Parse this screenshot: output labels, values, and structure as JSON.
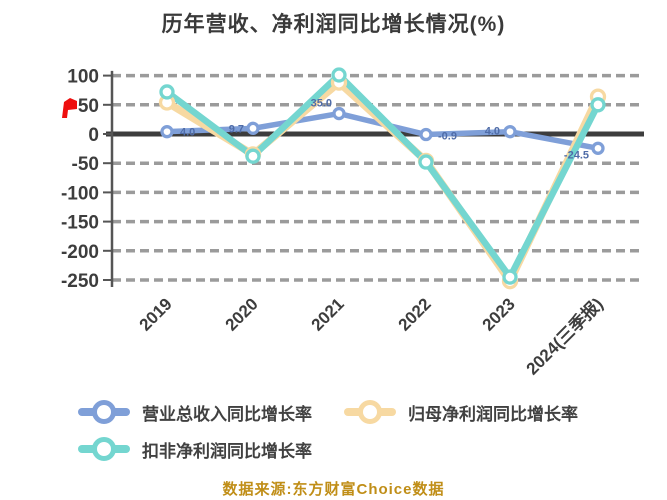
{
  "title": "历年营收、净利润同比增长情况(%)",
  "caption": "数据来源:东方财富Choice数据",
  "colors": {
    "revenue_line": "#7f9fd8",
    "net_profit_line": "#f7d9a2",
    "non_recurring_line": "#74d6d0",
    "zero_line": "#3d3d3d",
    "grid": "#9b9b9b",
    "axis_text": "#3d3d3d",
    "data_label": "#4f6ca8",
    "caption_text": "#c08e17",
    "red_marker": "#ee0f0f"
  },
  "chart_data": {
    "type": "line",
    "title": "历年营收、净利润同比增长情况(%)",
    "categories": [
      "2019",
      "2020",
      "2021",
      "2022",
      "2023",
      "2024(三季报)"
    ],
    "series": [
      {
        "name": "营业总收入同比增长率",
        "color": "#7f9fd8",
        "width": 5.5,
        "marker_r": 5,
        "values": [
          4.0,
          9.7,
          35.0,
          -0.9,
          4.0,
          -24.5
        ],
        "labels": [
          "4.0",
          "9.7",
          "35.0",
          "-0.9",
          "4.0",
          "-24.5"
        ]
      },
      {
        "name": "归母净利润同比增长率",
        "color": "#f7d9a2",
        "width": 7.5,
        "marker_r": 6.5,
        "values": [
          54,
          -35,
          88,
          -46,
          -252,
          64
        ]
      },
      {
        "name": "扣非净利润同比增长率",
        "color": "#74d6d0",
        "width": 6.5,
        "marker_r": 6,
        "values": [
          72,
          -38,
          101,
          -48,
          -245,
          50
        ]
      }
    ],
    "xlabel": "",
    "ylabel": "",
    "ylim": [
      -250,
      100
    ],
    "yticks": [
      100,
      50,
      0,
      -50,
      -100,
      -150,
      -200,
      -250
    ],
    "grid": "horizontal-dashed",
    "legend_position": "bottom-left"
  }
}
